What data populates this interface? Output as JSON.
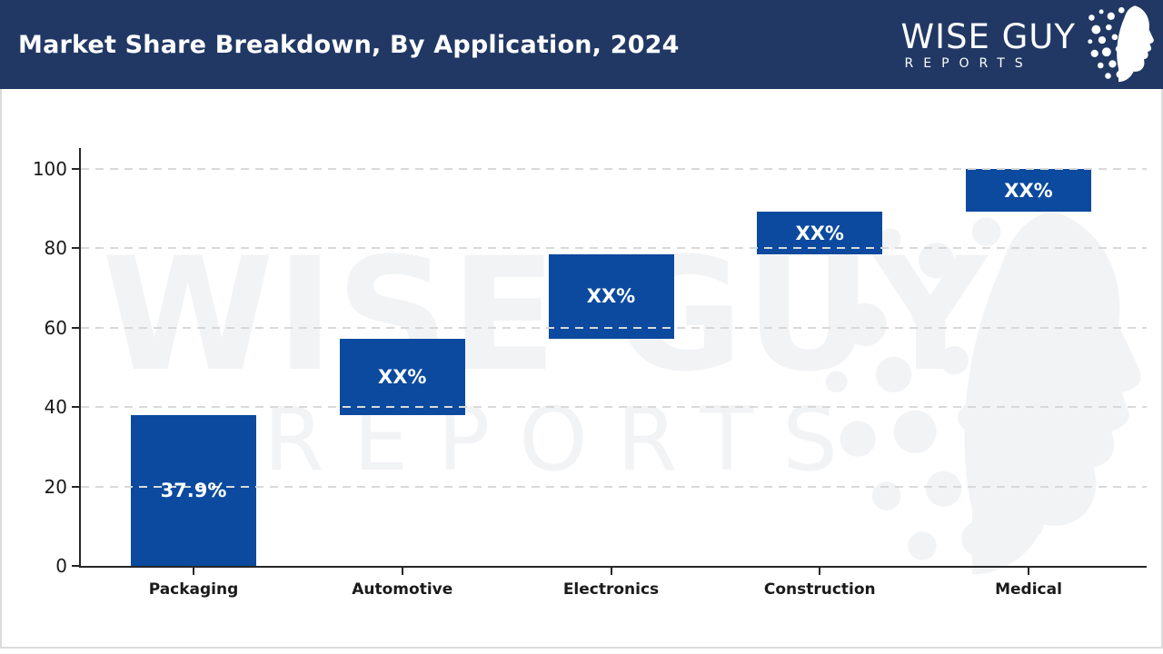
{
  "header": {
    "title": "Market Share Breakdown, By Application, 2024",
    "brand": {
      "line1": "WISE GUY",
      "line2": "REPORTS"
    }
  },
  "watermark": {
    "line1": "WISE GUY",
    "line2": "REPORTS"
  },
  "chart_data": {
    "type": "bar",
    "subtype": "waterfall",
    "title": "Market Share Breakdown, By Application, 2024",
    "xlabel": "",
    "ylabel": "",
    "ylim": [
      0,
      100
    ],
    "yticks": [
      0,
      20,
      40,
      60,
      80,
      100
    ],
    "grid": "horizontal-dashed, drawn over bars",
    "legend": "none",
    "categories": [
      "Packaging",
      "Automotive",
      "Electronics",
      "Construction",
      "Medical"
    ],
    "segments": [
      {
        "category": "Packaging",
        "start": 0,
        "end": 37.9,
        "increment": 37.9,
        "label": "37.9%"
      },
      {
        "category": "Automotive",
        "start": 37.9,
        "end": 57.2,
        "increment": 19.3,
        "label": "XX%"
      },
      {
        "category": "Electronics",
        "start": 57.2,
        "end": 78.5,
        "increment": 21.3,
        "label": "XX%"
      },
      {
        "category": "Construction",
        "start": 78.5,
        "end": 89.2,
        "increment": 10.7,
        "label": "XX%"
      },
      {
        "category": "Medical",
        "start": 89.2,
        "end": 100,
        "increment": 10.8,
        "label": "XX%"
      }
    ]
  },
  "colors": {
    "header_bg": "#213864",
    "bar": "#0b4a9f",
    "axis": "#262626",
    "grid": "#d9d9d9",
    "tick_text": "#1a1a1a",
    "label_on_bar": "#ffffff",
    "watermark": "#f2f3f5",
    "canvas_border": "#dcdcdc"
  }
}
